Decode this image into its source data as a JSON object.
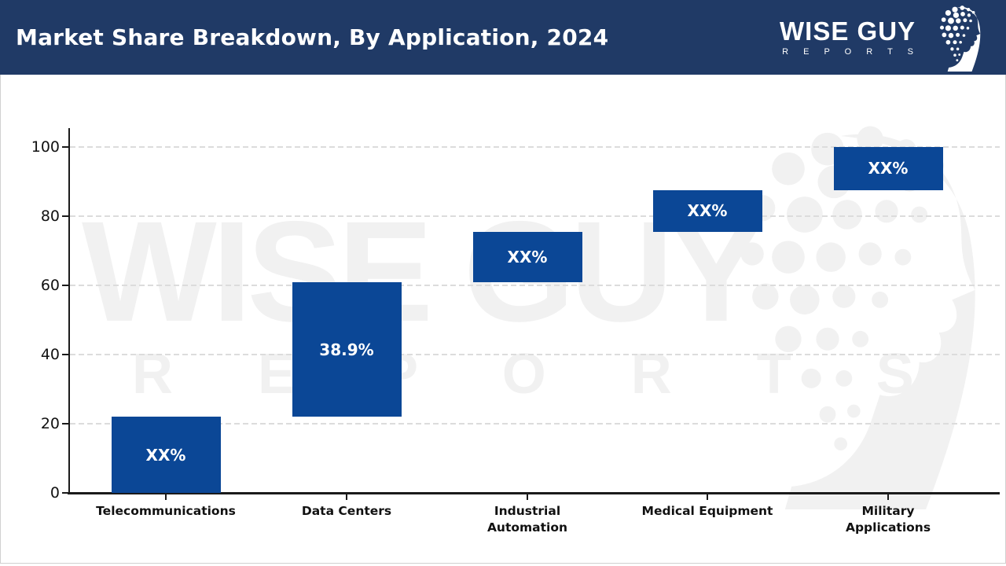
{
  "header": {
    "title": "Market Share Breakdown, By Application, 2024",
    "logo": {
      "primary": "WISE GUY",
      "secondary": "REPORTS"
    }
  },
  "watermark": {
    "primary": "WISE GUY",
    "secondary": "REPORTS"
  },
  "colors": {
    "header_bg": "#203A66",
    "bar": "#0B4796",
    "bar_label": "#FFFFFF",
    "grid": "#DCDCDC",
    "axis": "#1A1A1A",
    "text": "#111111",
    "watermark": "#F1F1F1",
    "frame": "#D0D0D0"
  },
  "chart_data": {
    "type": "bar",
    "subtype": "waterfall",
    "title": "Market Share Breakdown, By Application, 2024",
    "xlabel": "",
    "ylabel": "",
    "unit": "percent market share",
    "ylim": [
      0,
      105.5
    ],
    "yticks": [
      0,
      20,
      40,
      60,
      80,
      100
    ],
    "grid": "horizontal dashed",
    "legend": "none",
    "categories": [
      "Telecommunications",
      "Data Centers",
      "Industrial Automation",
      "Medical Equipment",
      "Military Applications"
    ],
    "bars": [
      {
        "category": "Telecommunications",
        "category_lines": [
          "Telecommunications"
        ],
        "start": 0,
        "end": 22.0,
        "value_label": "XX%"
      },
      {
        "category": "Data Centers",
        "category_lines": [
          "Data Centers"
        ],
        "start": 22.0,
        "end": 60.9,
        "value_label": "38.9%",
        "value": 38.9
      },
      {
        "category": "Industrial Automation",
        "category_lines": [
          "Industrial",
          "Automation"
        ],
        "start": 60.9,
        "end": 75.5,
        "value_label": "XX%"
      },
      {
        "category": "Medical Equipment",
        "category_lines": [
          "Medical Equipment"
        ],
        "start": 75.5,
        "end": 87.6,
        "value_label": "XX%"
      },
      {
        "category": "Military Applications",
        "category_lines": [
          "Military",
          "Applications"
        ],
        "start": 87.6,
        "end": 100.0,
        "value_label": "XX%"
      }
    ]
  }
}
